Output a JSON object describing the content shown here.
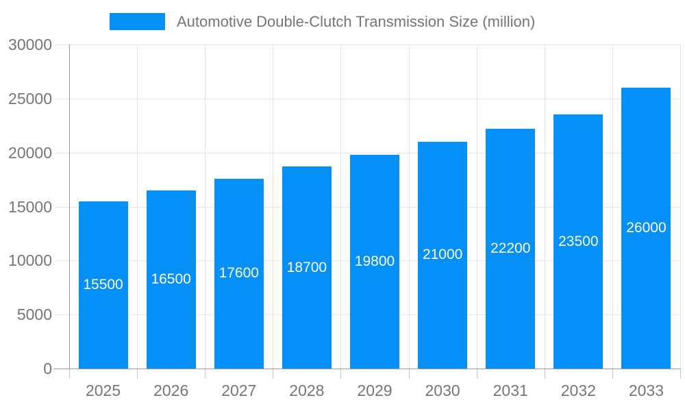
{
  "chart_data": {
    "type": "bar",
    "title": "Automotive Double-Clutch Transmission Size (million)",
    "legend": {
      "position": "top",
      "entries": [
        "Automotive Double-Clutch Transmission Size (million)"
      ]
    },
    "categories": [
      "2025",
      "2026",
      "2027",
      "2028",
      "2029",
      "2030",
      "2031",
      "2032",
      "2033"
    ],
    "values": [
      15500,
      16500,
      17600,
      18700,
      19800,
      21000,
      22200,
      23500,
      26000
    ],
    "xlabel": "",
    "ylabel": "",
    "ylim": [
      0,
      30000
    ],
    "ytick_interval": 5000,
    "yticks": [
      0,
      5000,
      10000,
      15000,
      20000,
      25000,
      30000
    ],
    "grid": true,
    "value_labels": "inside-center",
    "colors": {
      "bar": "#0590f8",
      "bar_value_text": "#ffffff",
      "grid_line": "#e3e3e3",
      "axis_line": "#999999",
      "tick_mark": "#c4c4c4",
      "axis_text": "#757575",
      "legend_text": "#757575",
      "background": "#ffffff"
    }
  }
}
